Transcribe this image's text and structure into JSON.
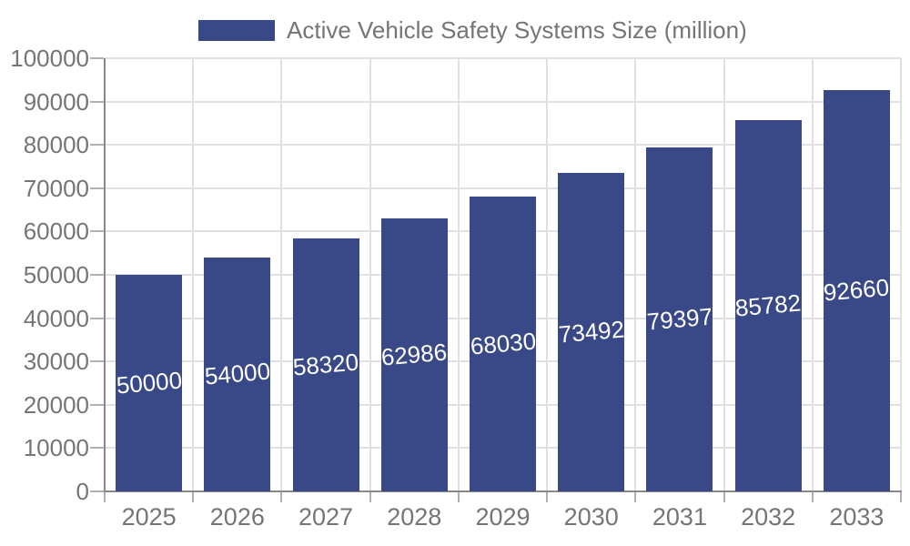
{
  "chart_data": {
    "type": "bar",
    "title": "",
    "legend_label": "Active Vehicle Safety Systems Size (million)",
    "legend_position": "top",
    "categories": [
      "2025",
      "2026",
      "2027",
      "2028",
      "2029",
      "2030",
      "2031",
      "2032",
      "2033"
    ],
    "series": [
      {
        "name": "Active Vehicle Safety Systems Size (million)",
        "values": [
          50000,
          54000,
          58320,
          62986,
          68030,
          73492,
          79397,
          85782,
          92660
        ]
      }
    ],
    "value_labels": [
      "50000",
      "54000",
      "58320",
      "62986",
      "68030",
      "73492",
      "79397",
      "85782",
      "92660"
    ],
    "xlabel": "",
    "ylabel": "",
    "ylim": [
      0,
      100000
    ],
    "y_ticks": [
      0,
      10000,
      20000,
      30000,
      40000,
      50000,
      60000,
      70000,
      80000,
      90000,
      100000
    ],
    "grid": true
  },
  "colors": {
    "bar": "#394887",
    "grid": "#e0e0e0",
    "axis": "#888888",
    "tick": "#b0b0b0",
    "tick_text": "#757575",
    "legend_text": "#757575",
    "value_text": "#ffffff",
    "background": "#ffffff"
  }
}
